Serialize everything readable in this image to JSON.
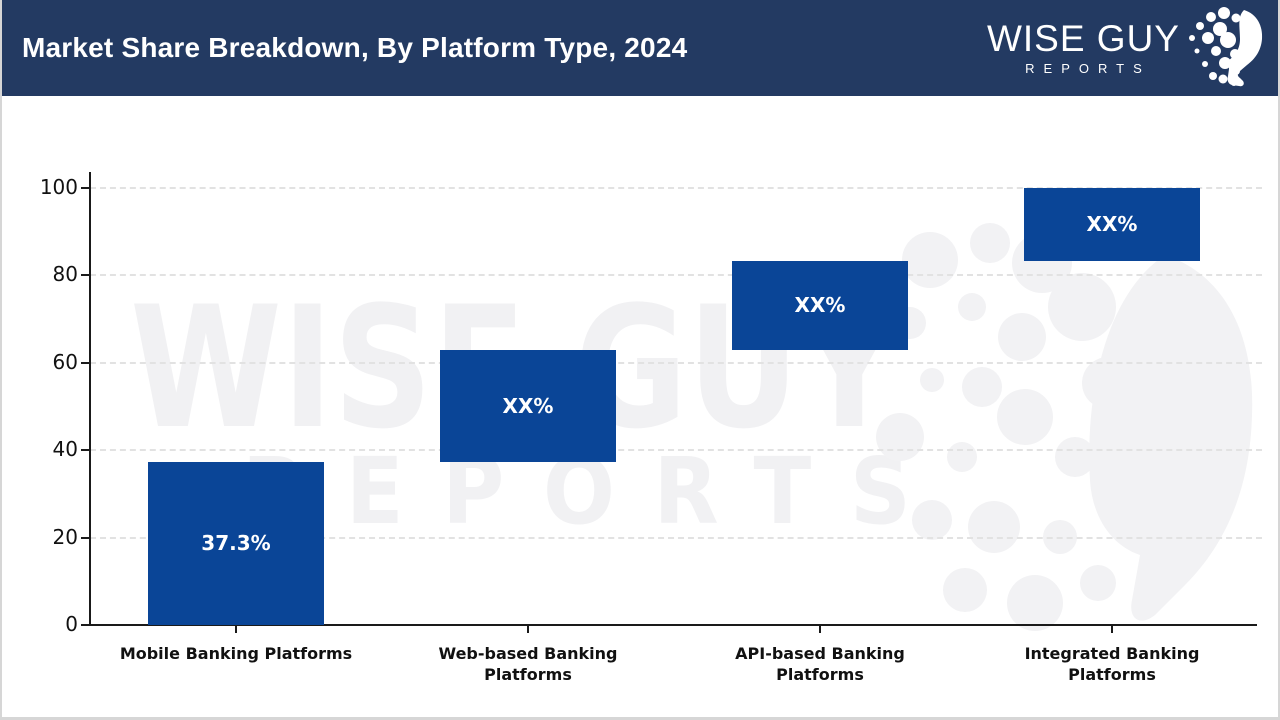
{
  "header": {
    "title": "Market Share Breakdown, By Platform Type, 2024",
    "logo": {
      "name": "WISE GUY",
      "sub": "REPORTS"
    }
  },
  "watermark": {
    "line1": "WISE GUY",
    "line2": "REPORTS"
  },
  "chart_data": {
    "type": "bar",
    "variant": "floating-waterfall",
    "title": "Market Share Breakdown, By Platform Type, 2024",
    "categories": [
      "Mobile Banking Platforms",
      "Web-based Banking Platforms",
      "API-based Banking Platforms",
      "Integrated Banking Platforms"
    ],
    "segments": [
      {
        "start": 0,
        "end": 37.3,
        "label": "37.3%"
      },
      {
        "start": 37.3,
        "end": 63,
        "label": "XX%"
      },
      {
        "start": 63,
        "end": 83.3,
        "label": "XX%"
      },
      {
        "start": 83.3,
        "end": 100,
        "label": "XX%"
      }
    ],
    "ylim": [
      0,
      100
    ],
    "yticks": [
      0,
      20,
      40,
      60,
      80,
      100
    ],
    "grid": "horizontal-dashed",
    "legend": "none",
    "bar_color": "#0a4597",
    "bar_label_color": "#ffffff",
    "axis_color": "#1a1a1a",
    "header_bg": "#233a62"
  }
}
